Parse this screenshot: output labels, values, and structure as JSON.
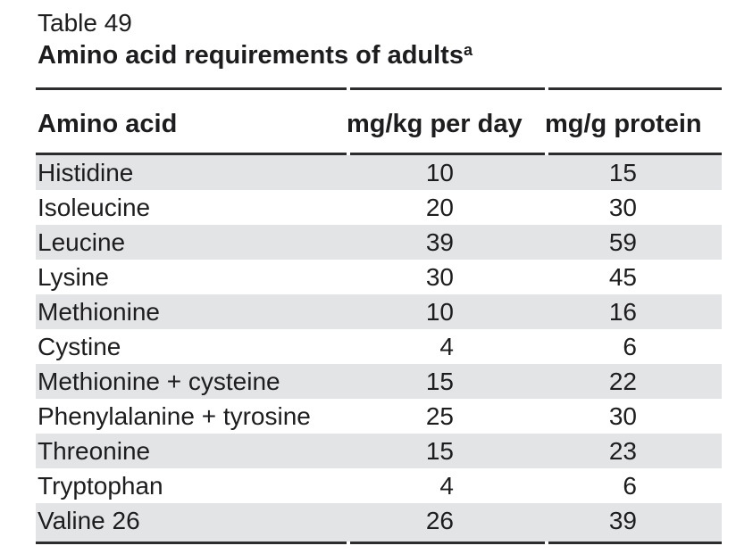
{
  "document": {
    "table_label": "Table 49",
    "title": "Amino acid requirements of adults",
    "title_footnote_marker": "a"
  },
  "table": {
    "columns": [
      "Amino acid",
      "mg/kg per day",
      "mg/g protein"
    ],
    "rows": [
      {
        "name": "Histidine",
        "mg_kg_day": "10",
        "mg_g_protein": "15"
      },
      {
        "name": "Isoleucine",
        "mg_kg_day": "20",
        "mg_g_protein": "30"
      },
      {
        "name": "Leucine",
        "mg_kg_day": "39",
        "mg_g_protein": "59"
      },
      {
        "name": "Lysine",
        "mg_kg_day": "30",
        "mg_g_protein": "45"
      },
      {
        "name": "Methionine",
        "mg_kg_day": "10",
        "mg_g_protein": "16"
      },
      {
        "name": "Cystine",
        "mg_kg_day": "4",
        "mg_g_protein": "6"
      },
      {
        "name": "Methionine + cysteine",
        "mg_kg_day": "15",
        "mg_g_protein": "22"
      },
      {
        "name": "Phenylalanine + tyrosine",
        "mg_kg_day": "25",
        "mg_g_protein": "30"
      },
      {
        "name": "Threonine",
        "mg_kg_day": "15",
        "mg_g_protein": "23"
      },
      {
        "name": "Tryptophan",
        "mg_kg_day": "4",
        "mg_g_protein": "6"
      },
      {
        "name": "Valine 26",
        "mg_kg_day": "26",
        "mg_g_protein": "39"
      }
    ]
  },
  "colors": {
    "background": "#ffffff",
    "text": "#1d1d1f",
    "rule": "#2c2c2e",
    "row_stripe": "#e3e4e6"
  }
}
